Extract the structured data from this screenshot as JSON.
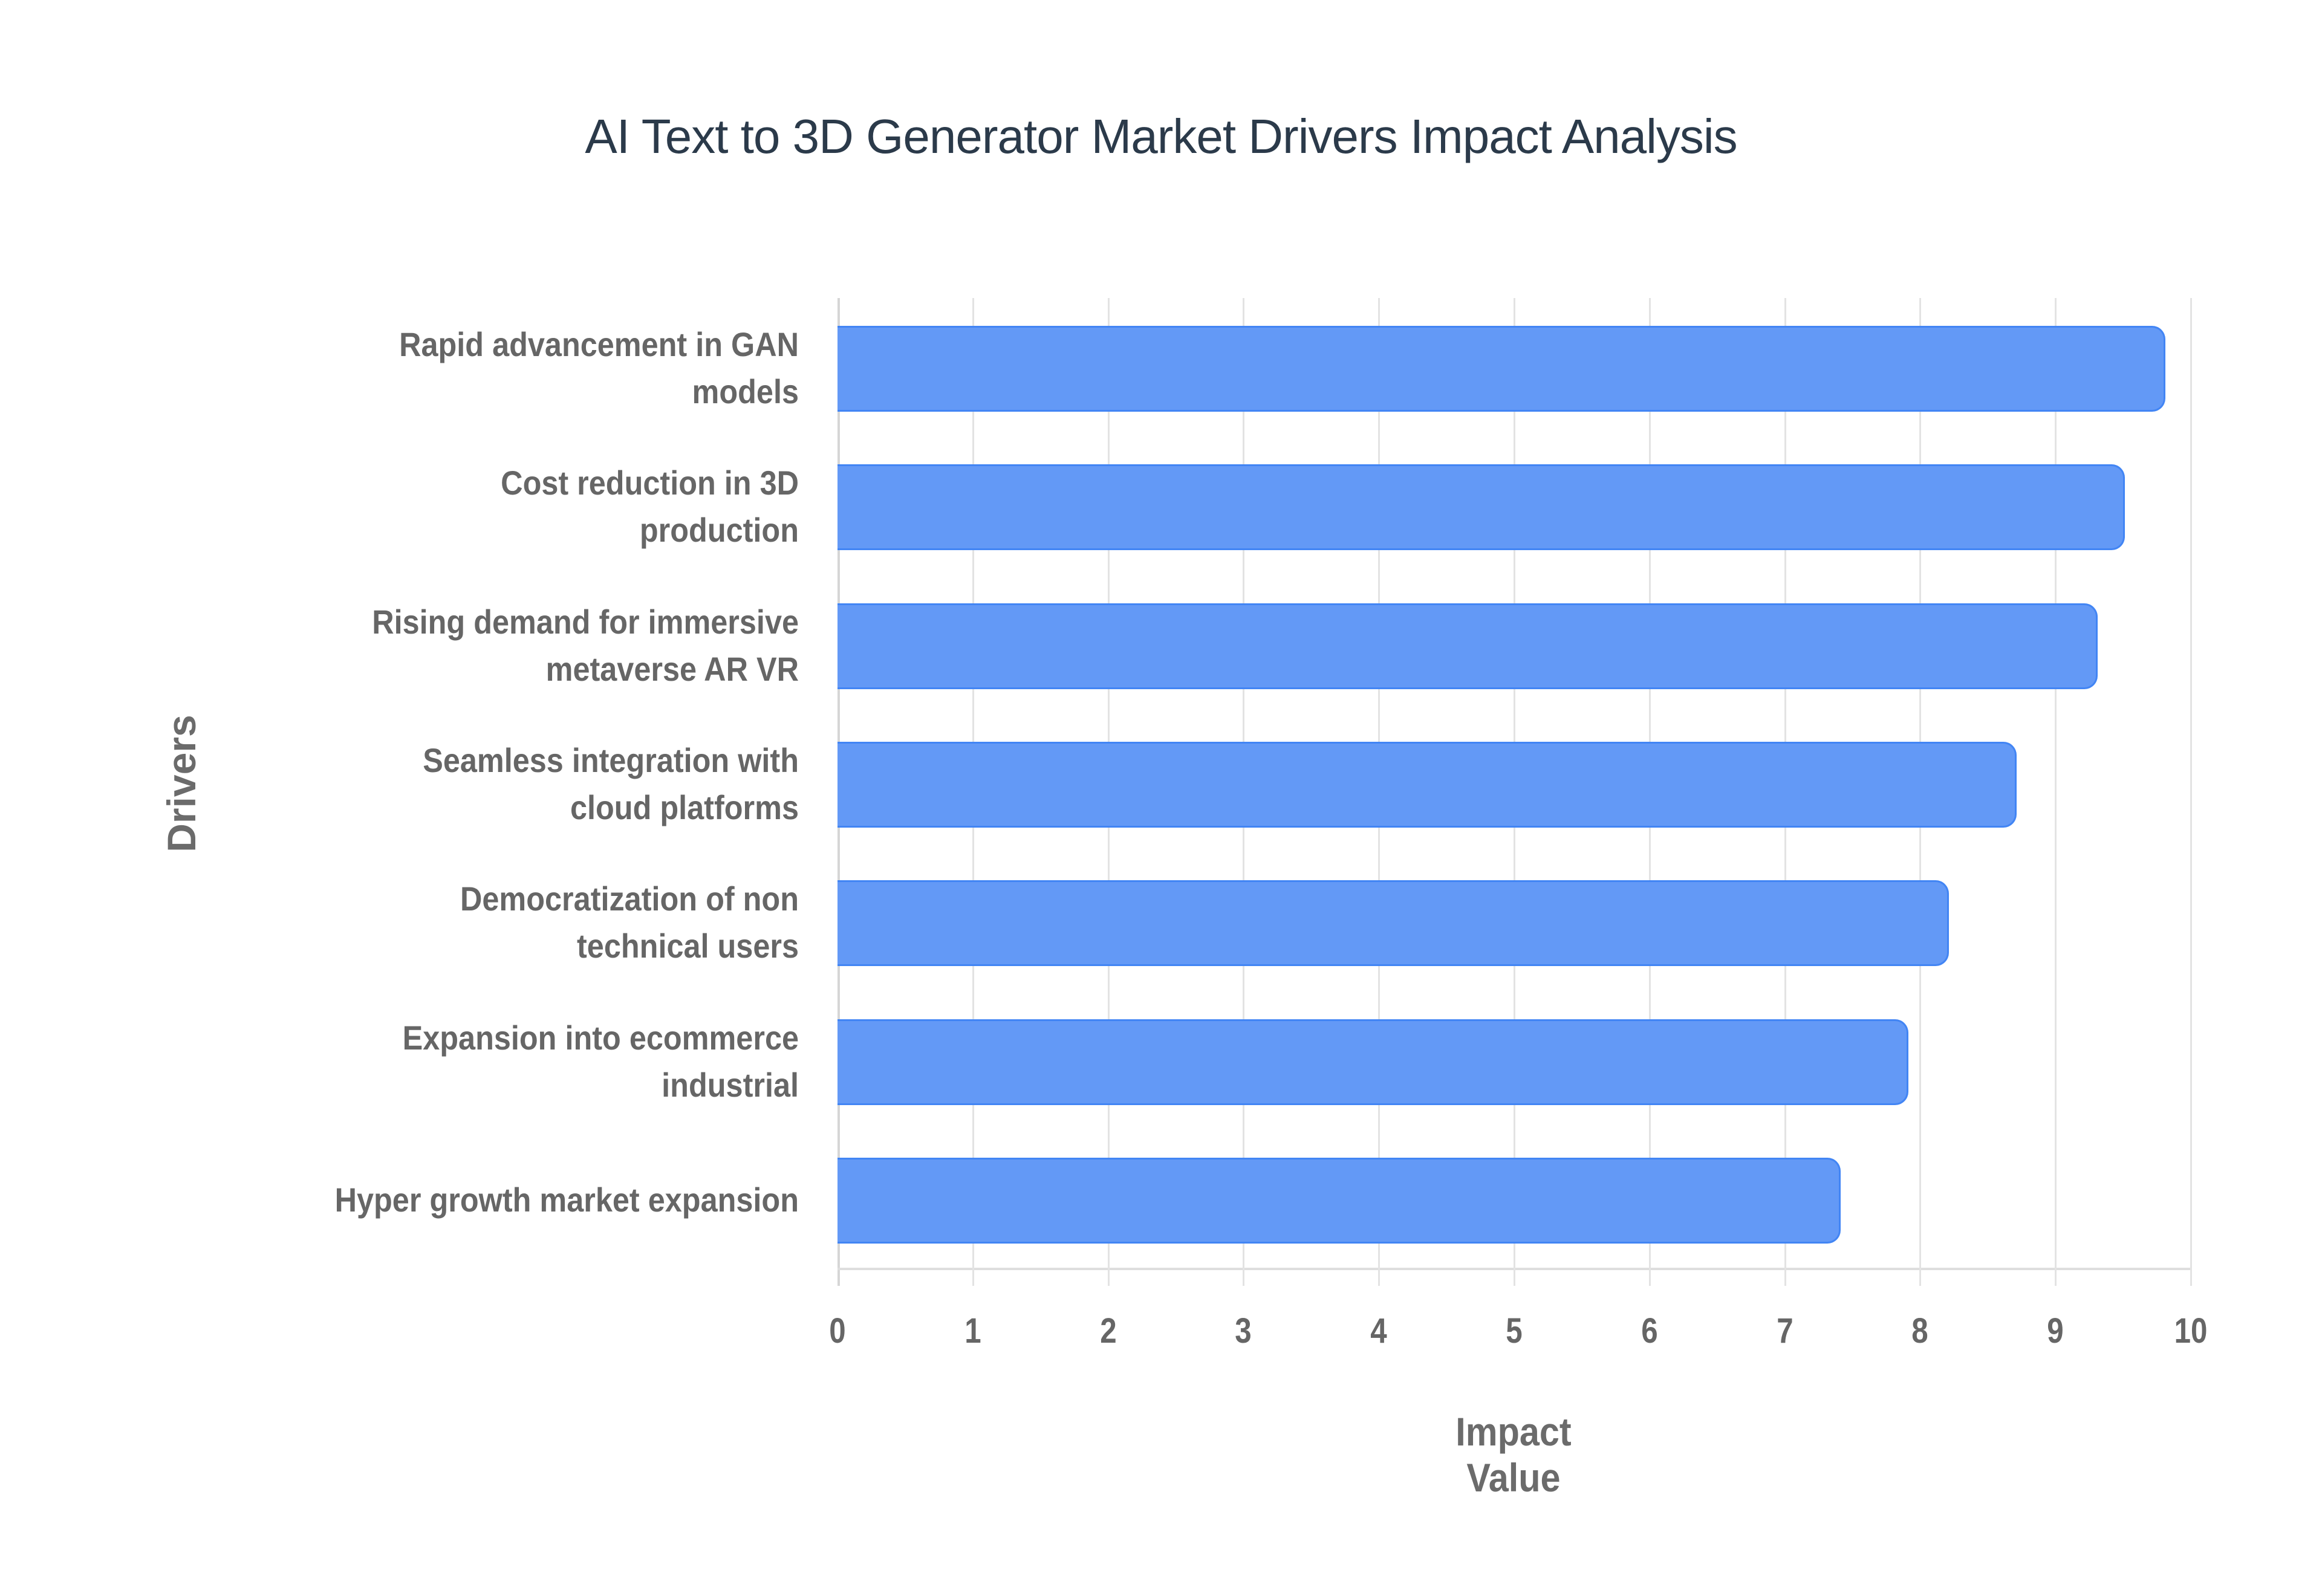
{
  "chart_data": {
    "type": "bar",
    "orientation": "horizontal",
    "title": "AI Text to 3D Generator Market Drivers Impact Analysis",
    "xlabel": "Impact Value",
    "ylabel": "Drivers",
    "xlim": [
      0,
      10
    ],
    "xticks": [
      "0",
      "1",
      "2",
      "3",
      "4",
      "5",
      "6",
      "7",
      "8",
      "9",
      "10"
    ],
    "grid": true,
    "legend": null,
    "categories": [
      "Rapid advancement in GAN models",
      "Cost reduction in 3D production",
      "Rising demand for immersive metaverse AR VR",
      "Seamless integration with cloud platforms",
      "Democratization of non technical users",
      "Expansion into ecommerce industrial",
      "Hyper growth market expansion"
    ],
    "values": [
      9.8,
      9.5,
      9.3,
      8.7,
      8.2,
      7.9,
      7.4
    ],
    "bar_color": "#6399f6",
    "bar_border_color": "#4285f4"
  },
  "labels": [
    {
      "line1": "Rapid advancement in GAN",
      "line2": "models"
    },
    {
      "line1": "Cost reduction in 3D",
      "line2": "production"
    },
    {
      "line1": "Rising demand for immersive",
      "line2": "metaverse AR VR"
    },
    {
      "line1": "Seamless integration with",
      "line2": "cloud platforms"
    },
    {
      "line1": "Democratization of non",
      "line2": "technical users"
    },
    {
      "line1": "Expansion into ecommerce",
      "line2": "industrial"
    },
    {
      "line1": "Hyper growth market expansion",
      "line2": ""
    }
  ]
}
